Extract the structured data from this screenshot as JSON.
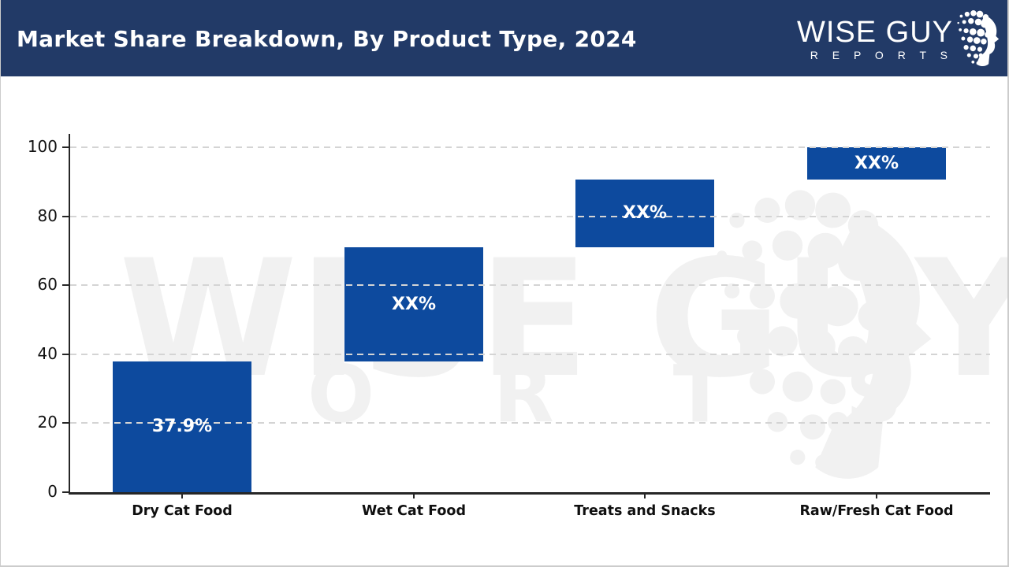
{
  "header": {
    "title": "Market Share Breakdown, By Product Type, 2024",
    "logo_line1": "WISE GUY",
    "logo_line2": "R E P O R T S"
  },
  "watermark": {
    "line1": "WISE GUY",
    "line2": "P O R T S"
  },
  "colors": {
    "header_bg": "#223a67",
    "bar": "#0d4a9e",
    "bar_label": "#ffffff",
    "grid": "#d4d4d4",
    "axis": "#262626",
    "watermark": "#f1f1f1",
    "tick_label": "#111111"
  },
  "chart_data": {
    "type": "bar",
    "subtype": "waterfall",
    "title": "Market Share Breakdown, By Product Type, 2024",
    "categories": [
      "Dry Cat Food",
      "Wet Cat Food",
      "Treats and Snacks",
      "Raw/Fresh Cat Food"
    ],
    "bars": [
      {
        "category": "Dry Cat Food",
        "start": 0,
        "end": 37.9,
        "label": "37.9%"
      },
      {
        "category": "Wet Cat Food",
        "start": 37.9,
        "end": 71.0,
        "label": "XX%"
      },
      {
        "category": "Treats and Snacks",
        "start": 71.0,
        "end": 90.6,
        "label": "XX%"
      },
      {
        "category": "Raw/Fresh Cat Food",
        "start": 90.6,
        "end": 100.0,
        "label": "XX%"
      }
    ],
    "y_ticks": [
      0,
      20,
      40,
      60,
      80,
      100
    ],
    "ylim": [
      0,
      104
    ],
    "xlabel": "",
    "ylabel": "",
    "grid": "horizontal-dashed",
    "legend": "none"
  }
}
